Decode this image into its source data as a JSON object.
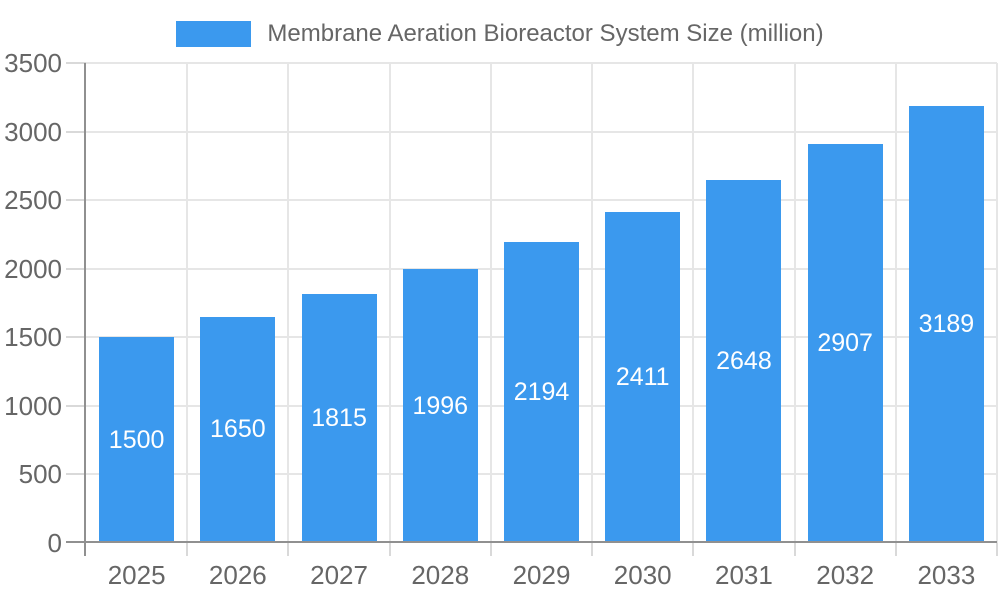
{
  "legend": {
    "label": "Membrane Aeration Bioreactor System Size (million)"
  },
  "chart_data": {
    "type": "bar",
    "title": "Membrane Aeration Bioreactor System Size (million)",
    "categories": [
      "2025",
      "2026",
      "2027",
      "2028",
      "2029",
      "2030",
      "2031",
      "2032",
      "2033"
    ],
    "values": [
      1500,
      1650,
      1815,
      1996,
      2194,
      2411,
      2648,
      2907,
      3189
    ],
    "xlabel": "",
    "ylabel": "",
    "ylim": [
      0,
      3500
    ],
    "yticks": [
      0,
      500,
      1000,
      1500,
      2000,
      2500,
      3000,
      3500
    ],
    "grid": true,
    "legend_position": "top",
    "bar_labels_visible": true
  },
  "colors": {
    "bar": "#3B99EE",
    "bar_label_text": "#FFFFFF",
    "axis_text": "#666666",
    "axis_line": "#909090",
    "gridline": "#E6E6E6",
    "tick": "#D9D9D9",
    "background": "#FFFFFF"
  }
}
